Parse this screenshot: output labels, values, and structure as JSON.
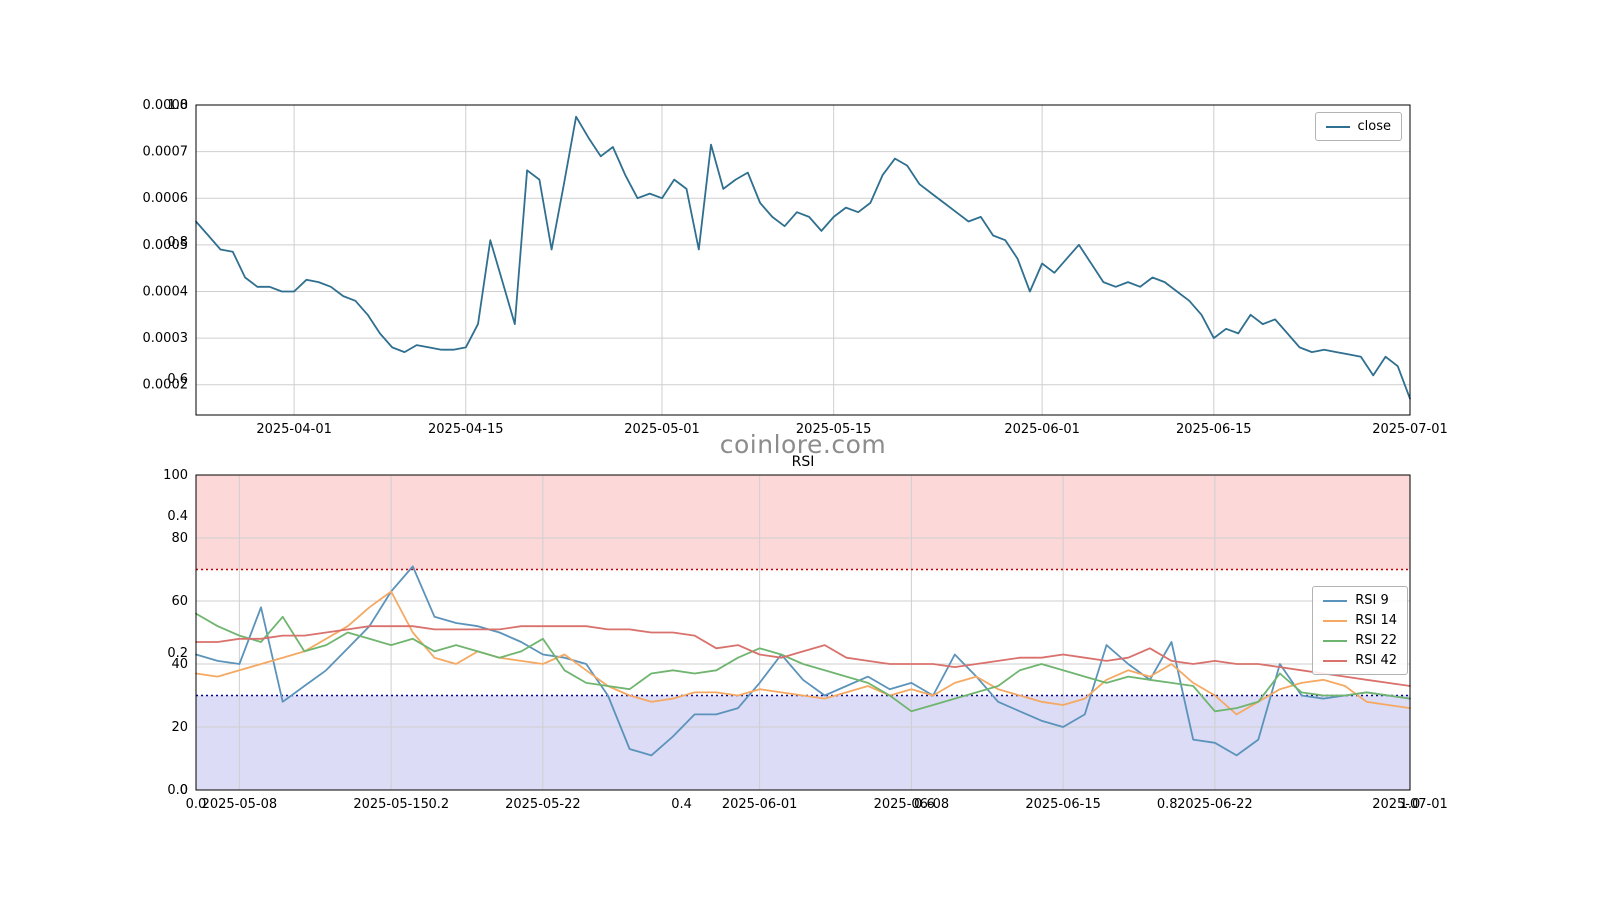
{
  "watermark": "coinlore.com",
  "colors": {
    "close": "#2f6f8f",
    "rsi9": "#5b93bb",
    "rsi14": "#f5a963",
    "rsi22": "#6fb56f",
    "rsi42": "#d9716c",
    "grid": "#cfcfcf",
    "frame": "#000000",
    "tick_text": "#000000",
    "overbought_fill": "#fdd8d8",
    "oversold_fill": "#dcdcf6",
    "overbought_line": "#c00000",
    "oversold_line": "#00008b",
    "watermark_color": "#8c8c8c"
  },
  "hidden_axis": {
    "x_labels": [
      "0.0",
      "0.2",
      "0.4",
      "0.6",
      "0.8",
      "1.0"
    ],
    "y_labels": [
      "0.0",
      "0.2",
      "0.4",
      "0.6",
      "0.8",
      "1.0"
    ]
  },
  "chart_data": [
    {
      "type": "line",
      "title": "",
      "x_start": "2025-03-24",
      "x_tick_labels": [
        "2025-04-01",
        "2025-04-15",
        "2025-05-01",
        "2025-05-15",
        "2025-06-01",
        "2025-06-15",
        "2025-07-01"
      ],
      "y_ticks": [
        0.0002,
        0.0003,
        0.0004,
        0.0005,
        0.0006,
        0.0007,
        0.0008
      ],
      "y_tick_labels": [
        "0.0002",
        "0.0003",
        "0.0004",
        "0.0005",
        "0.0006",
        "0.0007",
        "0.0008"
      ],
      "ylim": [
        0.000135,
        0.0008
      ],
      "grid": true,
      "legend_position": "upper right",
      "series": [
        {
          "name": "close",
          "color_key": "close",
          "values": [
            0.00055,
            0.00052,
            0.00049,
            0.000485,
            0.00043,
            0.00041,
            0.00041,
            0.0004,
            0.0004,
            0.000425,
            0.00042,
            0.00041,
            0.00039,
            0.00038,
            0.00035,
            0.00031,
            0.00028,
            0.00027,
            0.000285,
            0.00028,
            0.000275,
            0.000275,
            0.00028,
            0.00033,
            0.00051,
            0.00042,
            0.00033,
            0.00066,
            0.00064,
            0.00049,
            0.00063,
            0.000775,
            0.00073,
            0.00069,
            0.00071,
            0.00065,
            0.0006,
            0.00061,
            0.0006,
            0.00064,
            0.00062,
            0.00049,
            0.000715,
            0.00062,
            0.00064,
            0.000655,
            0.00059,
            0.00056,
            0.00054,
            0.00057,
            0.00056,
            0.00053,
            0.00056,
            0.00058,
            0.00057,
            0.00059,
            0.00065,
            0.000685,
            0.00067,
            0.00063,
            0.00061,
            0.00059,
            0.00057,
            0.00055,
            0.00056,
            0.00052,
            0.00051,
            0.00047,
            0.0004,
            0.00046,
            0.00044,
            0.00047,
            0.0005,
            0.00046,
            0.00042,
            0.00041,
            0.00042,
            0.00041,
            0.00043,
            0.00042,
            0.0004,
            0.00038,
            0.00035,
            0.0003,
            0.00032,
            0.00031,
            0.00035,
            0.00033,
            0.00034,
            0.00031,
            0.00028,
            0.00027,
            0.000275,
            0.00027,
            0.000265,
            0.00026,
            0.00022,
            0.00026,
            0.00024,
            0.00017
          ]
        }
      ]
    },
    {
      "type": "line",
      "title": "RSI",
      "x_start": "2025-05-06",
      "x_tick_labels": [
        "2025-05-08",
        "2025-05-15",
        "2025-05-22",
        "2025-06-01",
        "2025-06-08",
        "2025-06-15",
        "2025-06-22",
        "2025-07-01"
      ],
      "y_ticks": [
        0,
        20,
        40,
        60,
        80,
        100
      ],
      "y_tick_labels": [
        "0",
        "20",
        "40",
        "60",
        "80",
        "100"
      ],
      "ylim": [
        0,
        100
      ],
      "grid": true,
      "overbought": 70,
      "oversold": 30,
      "legend_position": "right",
      "series": [
        {
          "name": "RSI 9",
          "color_key": "rsi9",
          "values": [
            43,
            41,
            40,
            58,
            28,
            33,
            38,
            45,
            52,
            63,
            71,
            55,
            53,
            52,
            50,
            47,
            43,
            42,
            40,
            30,
            13,
            11,
            17,
            24,
            24,
            26,
            34,
            43,
            35,
            30,
            33,
            36,
            32,
            34,
            30,
            43,
            36,
            28,
            25,
            22,
            20,
            24,
            46,
            40,
            35,
            47,
            16,
            15,
            11,
            16,
            40,
            30,
            29,
            30,
            31,
            30,
            29
          ]
        },
        {
          "name": "RSI 14",
          "color_key": "rsi14",
          "values": [
            37,
            36,
            38,
            40,
            42,
            44,
            48,
            52,
            58,
            63,
            50,
            42,
            40,
            44,
            42,
            41,
            40,
            43,
            38,
            33,
            30,
            28,
            29,
            31,
            31,
            30,
            32,
            31,
            30,
            29,
            31,
            33,
            30,
            32,
            30,
            34,
            36,
            32,
            30,
            28,
            27,
            29,
            35,
            38,
            36,
            40,
            34,
            30,
            24,
            28,
            32,
            34,
            35,
            33,
            28,
            27,
            26
          ]
        },
        {
          "name": "RSI 22",
          "color_key": "rsi22",
          "values": [
            56,
            52,
            49,
            47,
            55,
            44,
            46,
            50,
            48,
            46,
            48,
            44,
            46,
            44,
            42,
            44,
            48,
            38,
            34,
            33,
            32,
            37,
            38,
            37,
            38,
            42,
            45,
            43,
            40,
            38,
            36,
            34,
            30,
            25,
            27,
            29,
            31,
            33,
            38,
            40,
            38,
            36,
            34,
            36,
            35,
            34,
            33,
            25,
            26,
            28,
            37,
            31,
            30,
            30,
            31,
            30,
            29
          ]
        },
        {
          "name": "RSI 42",
          "color_key": "rsi42",
          "values": [
            47,
            47,
            48,
            48,
            49,
            49,
            50,
            51,
            52,
            52,
            52,
            51,
            51,
            51,
            51,
            52,
            52,
            52,
            52,
            51,
            51,
            50,
            50,
            49,
            45,
            46,
            43,
            42,
            44,
            46,
            42,
            41,
            40,
            40,
            40,
            39,
            40,
            41,
            42,
            42,
            43,
            42,
            41,
            42,
            45,
            41,
            40,
            41,
            40,
            40,
            39,
            38,
            37,
            36,
            35,
            34,
            33
          ]
        }
      ]
    }
  ]
}
